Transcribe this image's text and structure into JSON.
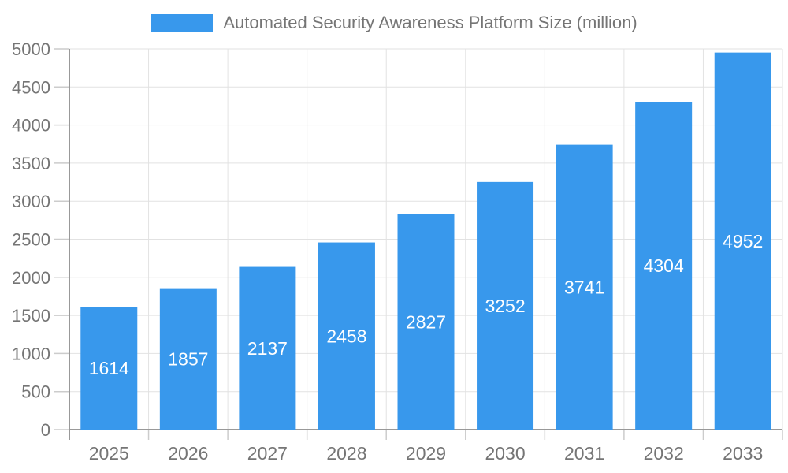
{
  "chart_data": {
    "type": "bar",
    "title": "Automated Security Awareness Platform Size (million)",
    "categories": [
      "2025",
      "2026",
      "2027",
      "2028",
      "2029",
      "2030",
      "2031",
      "2032",
      "2033"
    ],
    "values": [
      1614,
      1857,
      2137,
      2458,
      2827,
      3252,
      3741,
      4304,
      4952
    ],
    "xlabel": "",
    "ylabel": "",
    "ylim": [
      0,
      5000
    ],
    "ytick_step": 500,
    "ytick_labels": [
      "0",
      "500",
      "1000",
      "1500",
      "2000",
      "2500",
      "3000",
      "3500",
      "4000",
      "4500",
      "5000"
    ],
    "grid": true,
    "legend_position": "top",
    "bar_color": "#3898ec",
    "bar_label_color": "#ffffff",
    "text_color": "#757575",
    "grid_color": "#e2e2e2",
    "tick_color": "#cccccc",
    "axis_line_color": "#999999"
  }
}
